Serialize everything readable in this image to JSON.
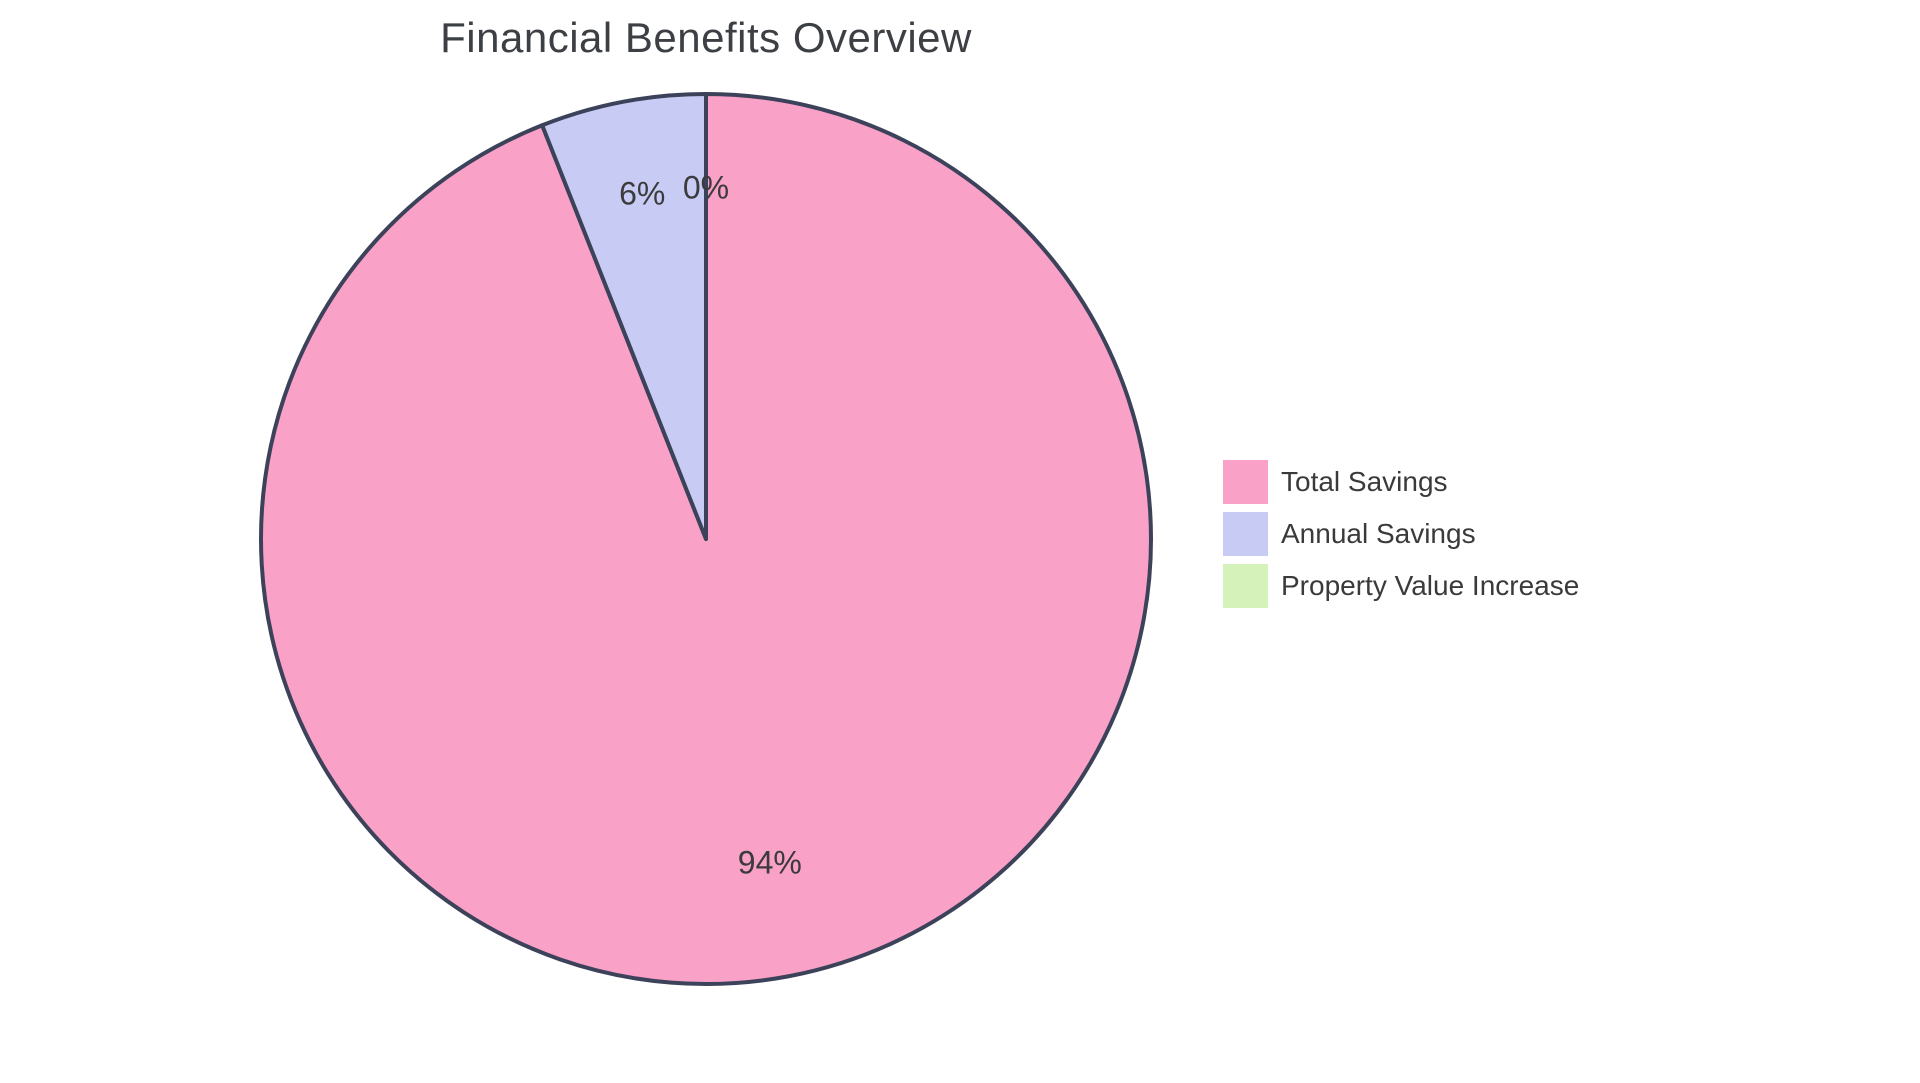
{
  "page": {
    "background_color": "#FFFFFF"
  },
  "chart_data": {
    "type": "pie",
    "title": "Financial Benefits Overview",
    "series": [
      {
        "label": "Total Savings",
        "value_pct": 94,
        "display_label": "94%",
        "color": "#FAA1C8"
      },
      {
        "label": "Annual Savings",
        "value_pct": 6,
        "display_label": "6%",
        "color": "#C8CCF4"
      },
      {
        "label": "Property Value Increase",
        "value_pct": 0,
        "display_label": "0%",
        "color": "#D4F2BA"
      }
    ],
    "start_angle": "top",
    "direction": "clockwise",
    "slice_border_color": "#3C4259",
    "slice_label_color": "#3B3B3D",
    "title_color": "#3C3F44",
    "legend_position": "right",
    "legend_text_color": "#3A3A3A",
    "grid": "off"
  },
  "legend": {
    "items": [
      {
        "label": "Total Savings"
      },
      {
        "label": "Annual Savings"
      },
      {
        "label": "Property Value Increase"
      }
    ]
  }
}
